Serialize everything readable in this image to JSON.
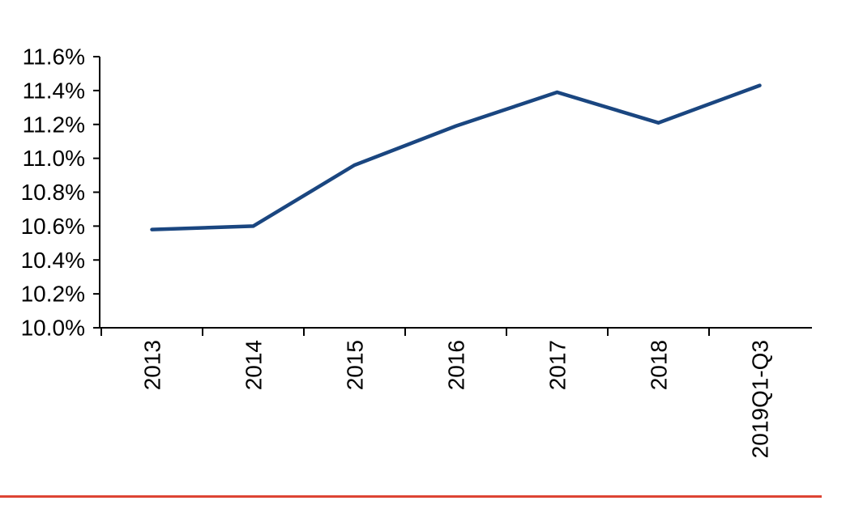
{
  "chart_data": {
    "type": "line",
    "title": "",
    "xlabel": "",
    "ylabel": "",
    "categories": [
      "2013",
      "2014",
      "2015",
      "2016",
      "2017",
      "2018",
      "2019Q1-Q3"
    ],
    "values": [
      10.58,
      10.6,
      10.96,
      11.19,
      11.39,
      11.21,
      11.43
    ],
    "ylim": [
      10.0,
      11.6
    ],
    "ytick_step": 0.2,
    "ytick_labels": [
      "10.0%",
      "10.2%",
      "10.4%",
      "10.6%",
      "10.8%",
      "11.0%",
      "11.2%",
      "11.4%",
      "11.6%"
    ],
    "grid": false,
    "legend_position": "none",
    "line_color": "#1A4680",
    "axis_color": "#000000",
    "label_color": "#000000"
  },
  "footer": {
    "divider_color": "#DD4433"
  }
}
